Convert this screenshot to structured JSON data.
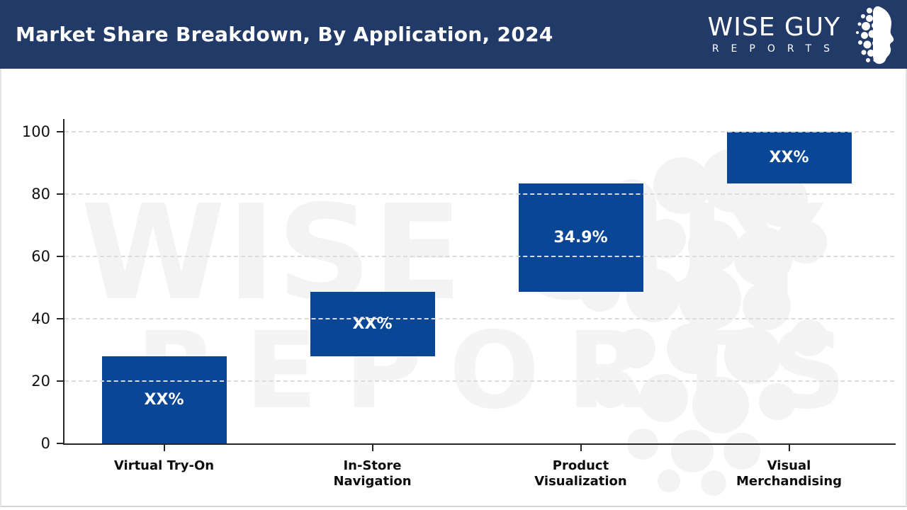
{
  "header": {
    "title": "Market Share Breakdown, By Application, 2024",
    "logo": {
      "line1": "WISE GUY",
      "line2": "REPORTS"
    }
  },
  "watermark": {
    "line1": "WISE GUY",
    "line2": "REPORTS"
  },
  "colors": {
    "header_bg": "#213a68",
    "bar_fill": "#0a4696",
    "bar_label": "#ffffff",
    "axis": "#262626",
    "gridline": "#dcdcdc",
    "watermark": "#f3f3f3"
  },
  "chart_data": {
    "type": "bar",
    "subtype": "waterfall",
    "title": "Market Share Breakdown, By Application, 2024",
    "categories": [
      "Virtual Try-On",
      "In-Store Navigation",
      "Product Visualization",
      "Visual Merchandising"
    ],
    "category_lines": [
      [
        "Virtual Try-On"
      ],
      [
        "In-Store",
        "Navigation"
      ],
      [
        "Product",
        "Visualization"
      ],
      [
        "Visual",
        "Merchandising"
      ]
    ],
    "bars": [
      {
        "category": "Virtual Try-On",
        "start": 0,
        "end": 28.0,
        "label": "XX%"
      },
      {
        "category": "In-Store Navigation",
        "start": 28.0,
        "end": 48.6,
        "label": "XX%"
      },
      {
        "category": "Product Visualization",
        "start": 48.6,
        "end": 83.5,
        "label": "34.9%"
      },
      {
        "category": "Visual Merchandising",
        "start": 83.5,
        "end": 100,
        "label": "XX%"
      }
    ],
    "ylim": [
      0,
      100
    ],
    "yticks": [
      0,
      20,
      40,
      60,
      80,
      100
    ],
    "xlabel": "",
    "ylabel": "",
    "grid": "horizontal-dashed",
    "legend": "none"
  }
}
